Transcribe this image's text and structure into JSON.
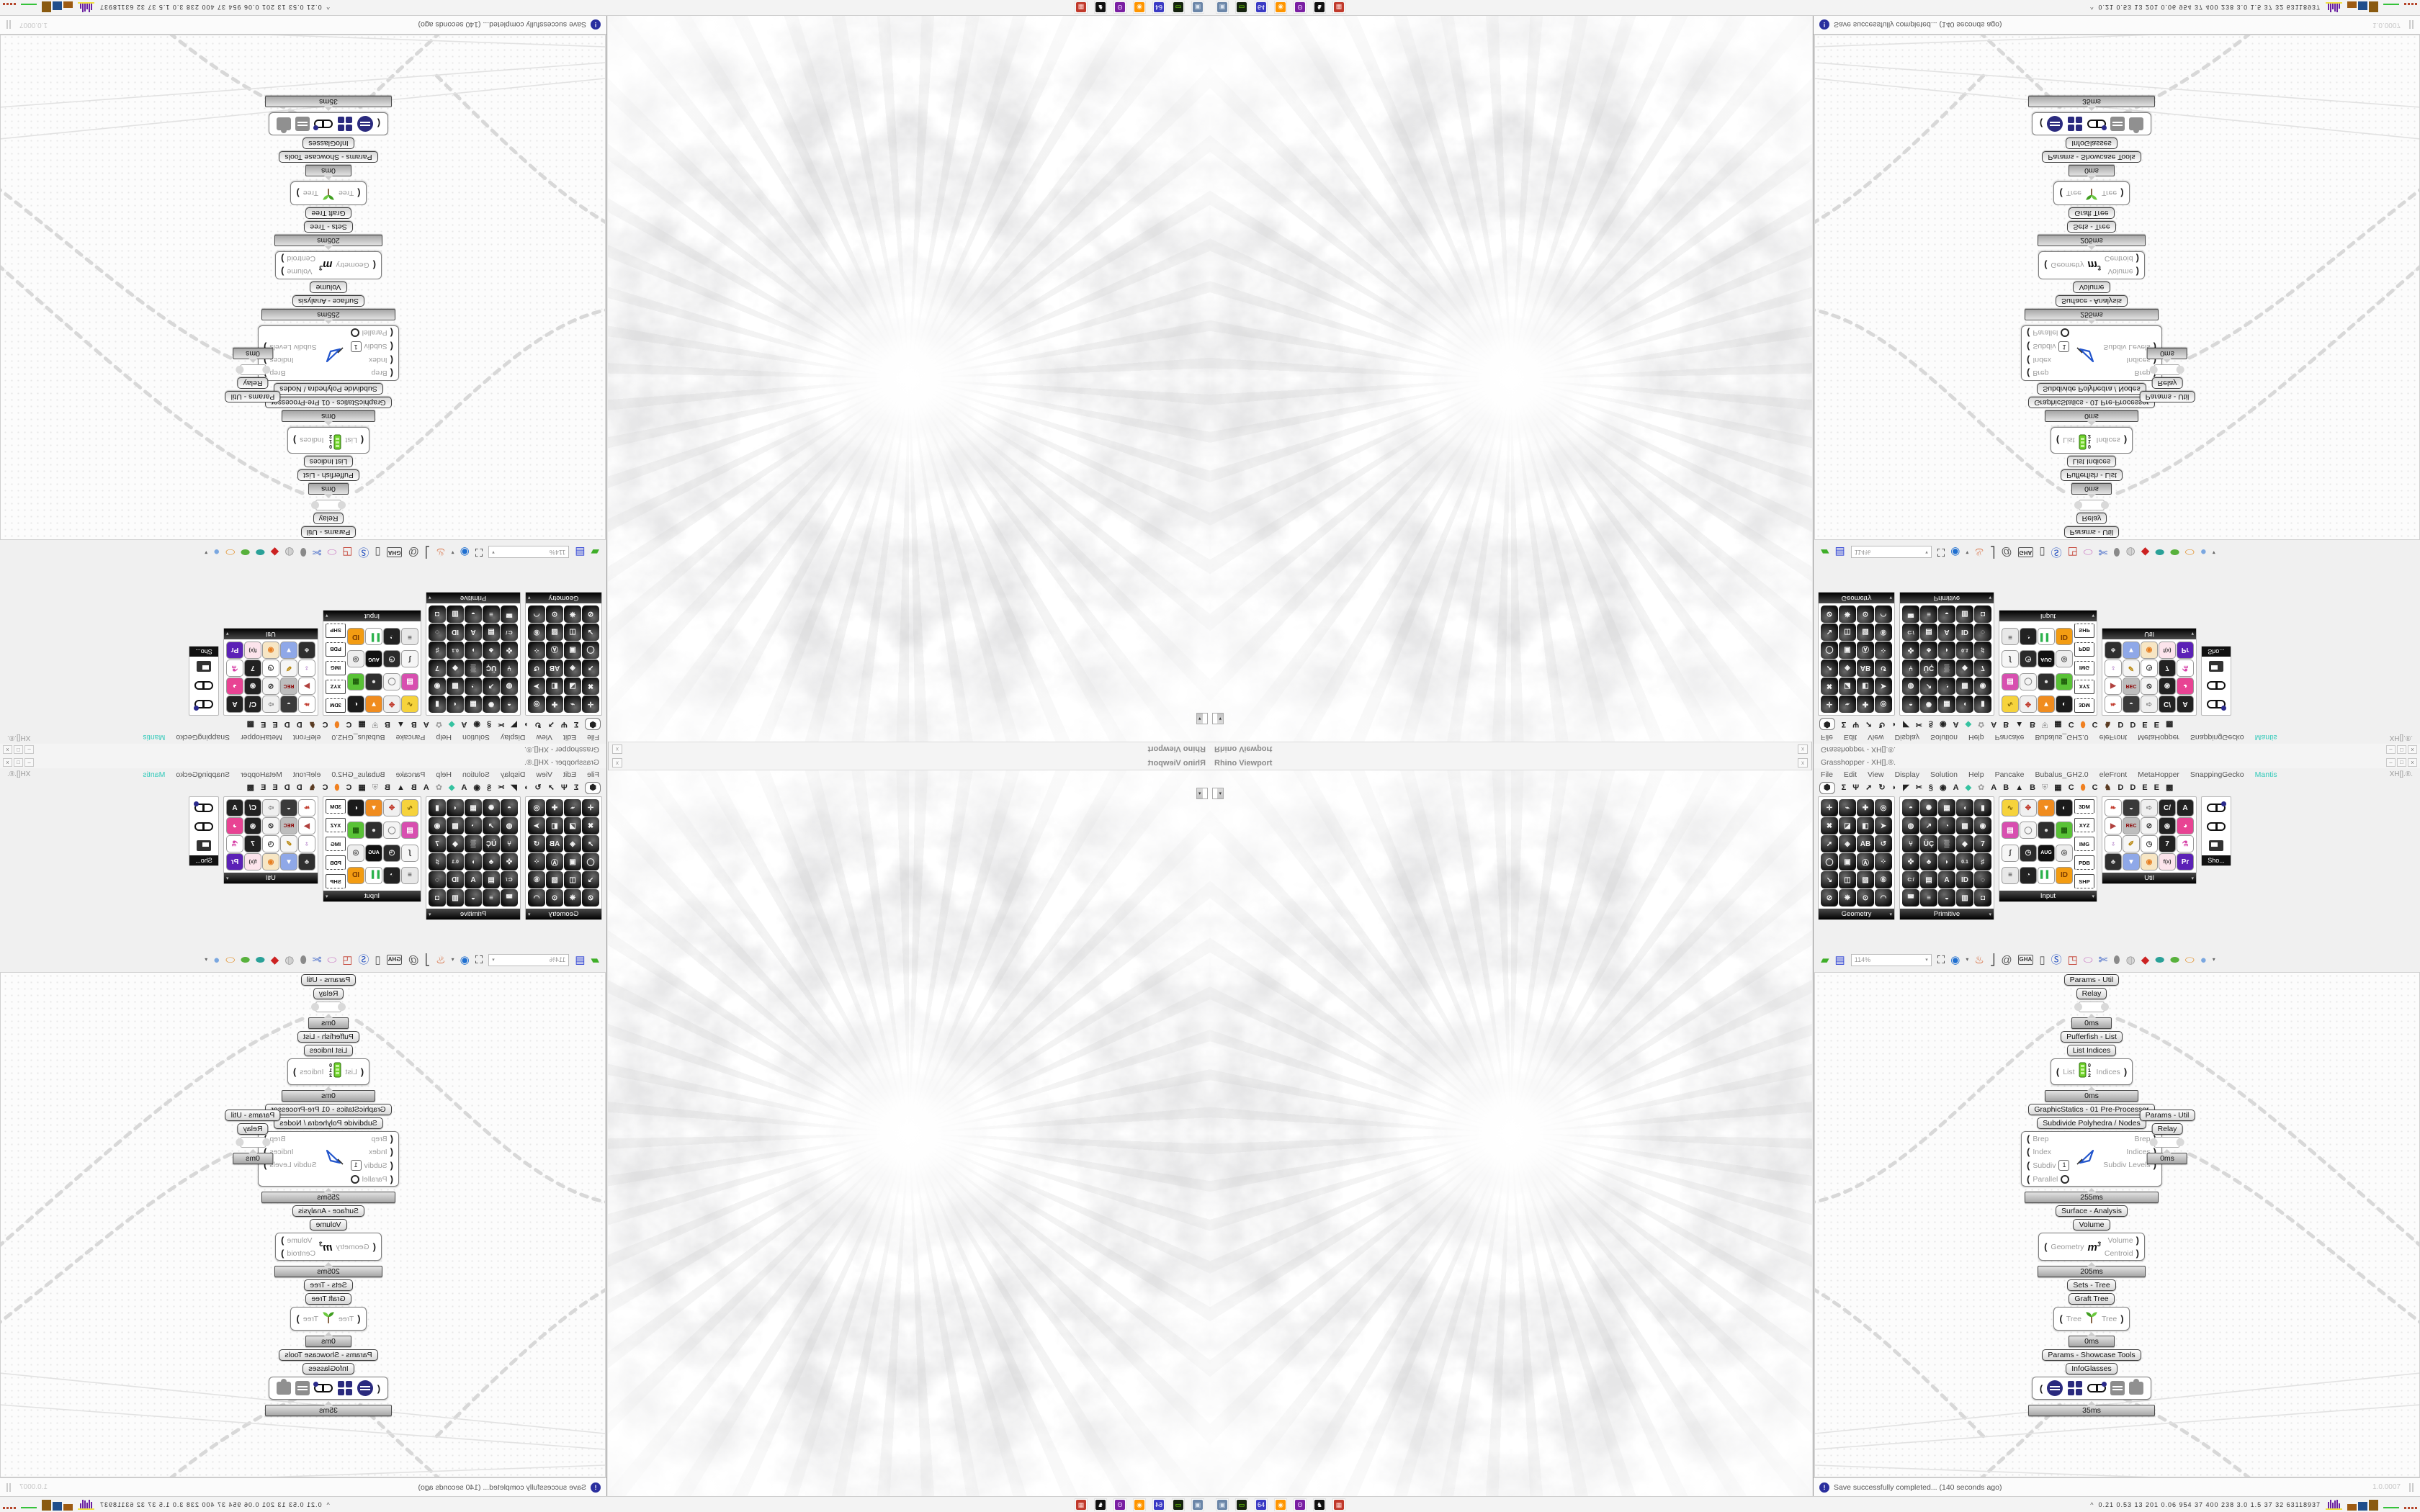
{
  "viewport": {
    "title": "Rhino Viewport",
    "close_label": "x",
    "menu_button_glyph": "▾"
  },
  "grasshopper": {
    "title": "Grasshopper - XH[].®.",
    "window_buttons": [
      "–",
      "□",
      "x"
    ],
    "menu": {
      "items": [
        "File",
        "Edit",
        "View",
        "Display",
        "Solution",
        "Help",
        "Pancake",
        "Bubalus_GH2.0",
        "eleFront",
        "MetaHopper",
        "SnappingGecko",
        "Mantis"
      ],
      "highlight_item": "Mantis",
      "right_text": "XH[].®."
    },
    "tabs": [
      {
        "g": "⬢",
        "k": "sel"
      },
      {
        "g": "Σ"
      },
      {
        "g": "Ψ"
      },
      {
        "g": "➚"
      },
      {
        "g": "↻"
      },
      {
        "g": "◗"
      },
      {
        "g": "◤"
      },
      {
        "g": "✂"
      },
      {
        "g": "§"
      },
      {
        "g": "◉"
      },
      {
        "g": "A"
      },
      {
        "g": "◆",
        "k": "teal"
      },
      {
        "g": "✿",
        "k": "dim"
      },
      {
        "g": "A"
      },
      {
        "g": "B"
      },
      {
        "g": "▲"
      },
      {
        "g": "B"
      },
      {
        "g": "⛨",
        "k": "dim"
      },
      {
        "g": "▦"
      },
      {
        "g": "C"
      },
      {
        "g": "⬮",
        "k": "orange"
      },
      {
        "g": "C"
      },
      {
        "g": "♞",
        "k": "brown"
      },
      {
        "g": "D"
      },
      {
        "g": "D"
      },
      {
        "g": "E"
      },
      {
        "g": "E"
      },
      {
        "g": "▩"
      }
    ],
    "ribbon": {
      "panels": [
        {
          "label": "Geometry",
          "cols": 4,
          "style": "dark",
          "icons": [
            {
              "g": "✛"
            },
            {
              "g": "⌁"
            },
            {
              "g": "✚"
            },
            {
              "g": "◎"
            },
            {
              "g": "✖"
            },
            {
              "g": "◪"
            },
            {
              "g": "◧"
            },
            {
              "g": "➤"
            },
            {
              "g": "➚"
            },
            {
              "g": "◈"
            },
            {
              "g": "AB"
            },
            {
              "g": "↺"
            },
            {
              "g": "◯"
            },
            {
              "g": "▣"
            },
            {
              "g": "Ⓐ"
            },
            {
              "g": "⁘"
            },
            {
              "g": "↘"
            },
            {
              "g": "◫"
            },
            {
              "g": "▨"
            },
            {
              "g": "⑥"
            },
            {
              "g": "⊘"
            },
            {
              "g": "❋"
            },
            {
              "g": "⊙"
            },
            {
              "g": "◠"
            }
          ]
        },
        {
          "label": "Primitive",
          "cols": 5,
          "style": "dark",
          "icons": [
            {
              "g": "◓"
            },
            {
              "g": "✺"
            },
            {
              "g": "▦"
            },
            {
              "g": "◖"
            },
            {
              "g": "▮"
            },
            {
              "g": "◍"
            },
            {
              "g": "↗"
            },
            {
              "g": "◔"
            },
            {
              "g": "▩"
            },
            {
              "g": "◉"
            },
            {
              "g": "⑂"
            },
            {
              "g": "ÜÇ"
            },
            {
              "g": "▒"
            },
            {
              "g": "◆"
            },
            {
              "g": "7"
            },
            {
              "g": "✜"
            },
            {
              "g": "♣"
            },
            {
              "g": "◗"
            },
            {
              "g": "0.1"
            },
            {
              "g": "♯"
            },
            {
              "g": "C:/"
            },
            {
              "g": "▤"
            },
            {
              "g": "A"
            },
            {
              "g": "ID"
            },
            {
              "g": "◌"
            },
            {
              "g": "◚"
            },
            {
              "g": "≡"
            },
            {
              "g": "◒"
            },
            {
              "g": "▥"
            },
            {
              "g": "◘"
            }
          ]
        },
        {
          "label": "Input",
          "cols": 4,
          "style": "color",
          "icons": [
            {
              "g": "∿",
              "bg": "#f6d33c",
              "fg": "#7a5d00"
            },
            {
              "g": "✥",
              "bg": "#f0f0f0",
              "fg": "#c0392b"
            },
            {
              "g": "▼",
              "bg": "#f08c1f",
              "fg": "#fff"
            },
            {
              "g": "◐",
              "bg": "#1b1b1b",
              "fg": "#eee"
            },
            {
              "g": "▤",
              "bg": "#d84fb0",
              "fg": "#fff"
            },
            {
              "g": "◯",
              "bg": "#f4f4f4",
              "fg": "#888"
            },
            {
              "g": "●",
              "bg": "#2f2f2f",
              "fg": "#ddd"
            },
            {
              "g": "▦",
              "bg": "#59c236",
              "fg": "#1e5c0c"
            },
            {
              "g": "∫",
              "bg": "#f6f6f6",
              "fg": "#333"
            },
            {
              "g": "◷",
              "bg": "#2b2b2b",
              "fg": "#eee"
            },
            {
              "g": "AUG",
              "bg": "#111",
              "fg": "#fff"
            },
            {
              "g": "◎",
              "bg": "#eee",
              "fg": "#555"
            },
            {
              "g": "≡",
              "bg": "#e8e8e8",
              "fg": "#333"
            },
            {
              "g": "◔",
              "bg": "#222",
              "fg": "#eee"
            },
            {
              "g": "▍▍",
              "bg": "#fff",
              "fg": "#2bb24c"
            },
            {
              "g": "ID",
              "bg": "#f39c12",
              "fg": "#7a3b00"
            }
          ],
          "stamps": [
            "3DM",
            "XYZ",
            "IMG",
            "PDB",
            "SHP"
          ]
        },
        {
          "label": "Util",
          "cols": 5,
          "style": "color",
          "icons": [
            {
              "g": "❧",
              "bg": "#fff",
              "fg": "#c0392b"
            },
            {
              "g": "◒",
              "bg": "#3a3a3a",
              "fg": "#ddd"
            },
            {
              "g": "➪",
              "bg": "#efefef",
              "fg": "#888"
            },
            {
              "g": "C/",
              "bg": "#222",
              "fg": "#fff"
            },
            {
              "g": "A",
              "bg": "#222",
              "fg": "#fff"
            },
            {
              "g": "▶",
              "bg": "#fff",
              "fg": "#b0413e"
            },
            {
              "g": "REC",
              "bg": "#bdbdbd",
              "fg": "#8b0000"
            },
            {
              "g": "⊘",
              "bg": "#f4f4f4",
              "fg": "#333"
            },
            {
              "g": "֍",
              "bg": "#222",
              "fg": "#eee"
            },
            {
              "g": "◕",
              "bg": "#e84393",
              "fg": "#fff"
            },
            {
              "g": "♁",
              "bg": "#fff",
              "fg": "#8e44ad"
            },
            {
              "g": "✐",
              "bg": "#f6f6f6",
              "fg": "#b8860b"
            },
            {
              "g": "◷",
              "bg": "#fff",
              "fg": "#333"
            },
            {
              "g": "7",
              "bg": "#222",
              "fg": "#fff"
            },
            {
              "g": "⚗",
              "bg": "#fff",
              "fg": "#d63fa6"
            },
            {
              "g": "♣",
              "bg": "#2f2f2f",
              "fg": "#cfcfcf"
            },
            {
              "g": "▼",
              "bg": "#8fa8e8",
              "fg": "#fff"
            },
            {
              "g": "◉",
              "bg": "#f7e6c4",
              "fg": "#e67e22"
            },
            {
              "g": "f(x)",
              "bg": "#fce4ec",
              "fg": "#333"
            },
            {
              "g": "Pr",
              "bg": "#5b21b6",
              "fg": "#fff"
            }
          ]
        }
      ],
      "showcase_label": "Sho..."
    },
    "toolbar": {
      "zoom_value": "114%",
      "icons": [
        {
          "g": "▰",
          "c": "#3fae29",
          "n": "open-file-icon"
        },
        {
          "g": "▤",
          "c": "#2b3fd4",
          "n": "save-file-icon"
        },
        {
          "g": "⛶",
          "c": "#111",
          "n": "zoom-extents-icon"
        },
        {
          "g": "◉",
          "c": "#1f6fd0",
          "n": "preview-eye-icon"
        },
        {
          "g": "▾",
          "c": "#666",
          "small": true,
          "n": "eye-dropdown-icon"
        },
        {
          "g": "♨",
          "c": "#d04a10",
          "n": "paint-flame-icon"
        },
        {
          "g": "⎦",
          "c": "#444",
          "n": "exit-icon"
        },
        {
          "g": "@",
          "c": "#555",
          "n": "at-icon"
        },
        {
          "g": "GHA",
          "c": "#333",
          "badge": true,
          "n": "gha-icon"
        },
        {
          "g": "▯",
          "c": "#555",
          "n": "sketch-icon"
        },
        {
          "g": "Ⓢ",
          "c": "#2a55c2",
          "n": "search-icon"
        },
        {
          "g": "◳",
          "c": "#c0392b",
          "n": "help-box-icon"
        },
        {
          "g": "⬭",
          "c": "#c86fc0",
          "n": "balloon-icon"
        },
        {
          "g": "✄",
          "c": "#2a55c2",
          "n": "wire-cut-icon"
        },
        {
          "g": "⬮",
          "c": "#8a8a8a",
          "n": "blob-gray-icon"
        },
        {
          "g": "◍",
          "c": "#9a9a9a",
          "n": "ring-gray-icon"
        },
        {
          "g": "◆",
          "c": "#c22",
          "n": "gem-red-icon"
        },
        {
          "g": "⬬",
          "c": "#2aa198",
          "n": "blob-teal-icon"
        },
        {
          "g": "⬬",
          "c": "#58b13c",
          "n": "blob-green-icon"
        },
        {
          "g": "⬭",
          "c": "#e08a1e",
          "n": "capsule-orange-icon"
        },
        {
          "g": "●",
          "c": "#7aa7e0",
          "n": "sphere-blue-icon"
        },
        {
          "g": "▾",
          "c": "#666",
          "small": true,
          "n": "sphere-dropdown-icon"
        }
      ]
    },
    "canvas": {
      "main_chain": [
        {
          "t": "label",
          "text": "Params - Util"
        },
        {
          "t": "label",
          "text": "Relay"
        },
        {
          "t": "relay"
        },
        {
          "t": "prof",
          "text": "0ms",
          "w": 56
        },
        {
          "t": "label",
          "text": "Pufferfish - List"
        },
        {
          "t": "label",
          "text": "List Indices"
        },
        {
          "t": "list",
          "in": "List",
          "out": "Indices",
          "digits": "012"
        },
        {
          "t": "prof",
          "text": "0ms",
          "w": 130
        },
        {
          "t": "label",
          "text": "GraphicStatics - 01 Pre-Processor"
        },
        {
          "t": "label",
          "text": "Subdivide Polyhedra / Nodes"
        },
        {
          "t": "subdiv",
          "inputs": [
            "Brep",
            "Index",
            "Subdiv",
            "Parallel"
          ],
          "subdiv_value": "1",
          "outputs": [
            "Brep",
            "Indices",
            "Subdiv Levels"
          ]
        },
        {
          "t": "prof",
          "text": "255ms",
          "w": 186
        },
        {
          "t": "label",
          "text": "Surface - Analysis"
        },
        {
          "t": "label",
          "text": "Volume"
        },
        {
          "t": "volume",
          "in": "Geometry",
          "outputs": [
            "Volume",
            "Centroid"
          ]
        },
        {
          "t": "prof",
          "text": "205ms",
          "w": 150
        },
        {
          "t": "label",
          "text": "Sets - Tree"
        },
        {
          "t": "label",
          "text": "Graft Tree"
        },
        {
          "t": "tree",
          "in": "Tree",
          "out": "Tree"
        },
        {
          "t": "prof",
          "text": "0ms",
          "w": 64
        },
        {
          "t": "label",
          "text": "Params - Showcase Tools"
        },
        {
          "t": "label",
          "text": "InfoGlasses"
        },
        {
          "t": "glasses"
        },
        {
          "t": "prof",
          "text": "35ms",
          "w": 176
        }
      ],
      "side_chain": [
        {
          "t": "label",
          "text": "Params - Util"
        },
        {
          "t": "label",
          "text": "Relay"
        },
        {
          "t": "relay"
        },
        {
          "t": "prof",
          "text": "0ms",
          "w": 56
        }
      ]
    },
    "status": {
      "message": "Save successfully completed... (140 seconds ago)",
      "version": "1.0.0007"
    }
  },
  "taskbar": {
    "apps": [
      {
        "n": "monitor-app-icon",
        "g": "▣",
        "bg": "#6b86a8",
        "fg": "#dce6f2"
      },
      {
        "n": "drive-app-icon",
        "g": "▭",
        "bg": "#15220f",
        "fg": "#7CFC00"
      },
      {
        "n": "floppy-64-app-icon",
        "g": "64",
        "bg": "#3b3bc4",
        "fg": "#fff"
      },
      {
        "n": "firefox-app-icon",
        "g": "◉",
        "bg": "#ff9500",
        "fg": "#fff7e0"
      },
      {
        "n": "goggles-app-icon",
        "g": "ʘ",
        "bg": "#7a1fa2",
        "fg": "#f3d9ff"
      },
      {
        "n": "figure-app-icon",
        "g": "♞",
        "bg": "#111",
        "fg": "#fff"
      },
      {
        "n": "robot-app-icon",
        "g": "▦",
        "bg": "#c0392b",
        "fg": "#ffd9d4"
      }
    ],
    "tray": {
      "expand_glyph": "^",
      "numbers": "0.21 0.53  13  201 0.06 954  37  400 238 3.0  1.5  37  32 63118937"
    }
  }
}
